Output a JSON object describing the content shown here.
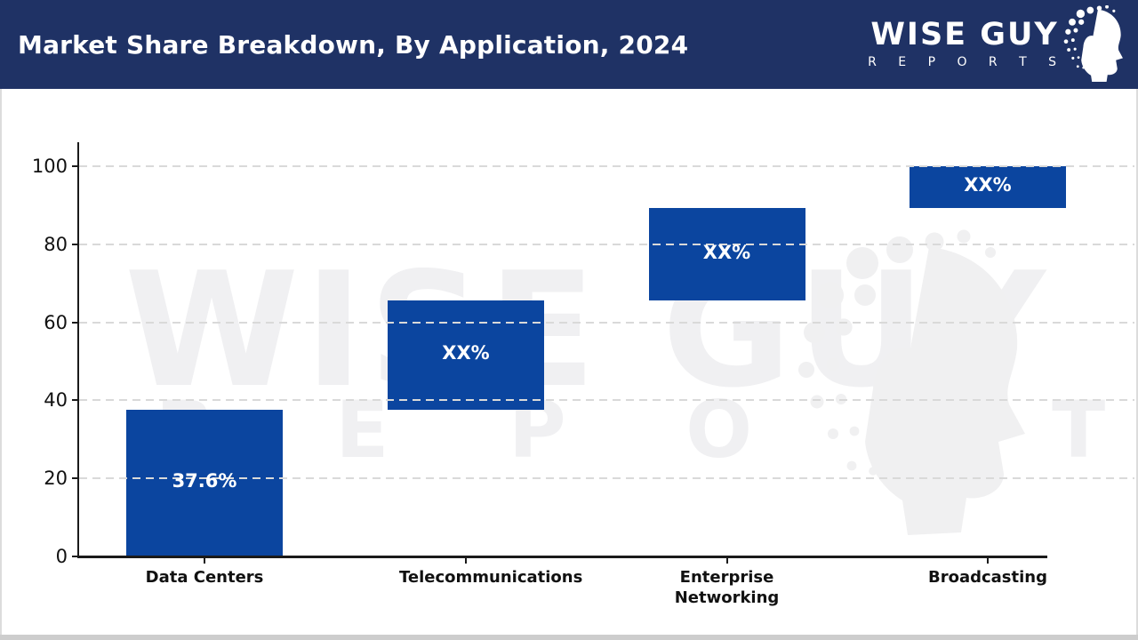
{
  "header": {
    "title": "Market Share Breakdown, By Application, 2024",
    "bg_color": "#1f3265",
    "logo": {
      "name_line": "WISE GUY",
      "reports_line": "R E P O R T S"
    }
  },
  "watermark": {
    "line1": "WISE GUY",
    "line2": "R E P O R T S"
  },
  "chart_data": {
    "type": "bar",
    "variant": "waterfall",
    "title": "Market Share Breakdown, By Application, 2024",
    "categories": [
      "Data Centers",
      "Telecommunications",
      "Enterprise Networking",
      "Broadcasting"
    ],
    "segments": [
      {
        "category": "Data Centers",
        "start": 0,
        "end": 37.6,
        "label": "37.6%"
      },
      {
        "category": "Telecommunications",
        "start": 37.6,
        "end": 65.7,
        "label": "XX%"
      },
      {
        "category": "Enterprise Networking",
        "start": 65.7,
        "end": 89.3,
        "label": "XX%"
      },
      {
        "category": "Broadcasting",
        "start": 89.3,
        "end": 100,
        "label": "XX%"
      }
    ],
    "yticks": [
      0,
      20,
      40,
      60,
      80,
      100
    ],
    "ylim": [
      0,
      105
    ],
    "xlabel": "",
    "ylabel": "",
    "grid": {
      "visible": true,
      "style": "dashed",
      "color": "#d9d9d9",
      "above_bars": true
    },
    "legend": "none",
    "bar_color": "#0b459f",
    "bar_label_color": "#ffffff",
    "axis_color": "#1a1a1a"
  }
}
